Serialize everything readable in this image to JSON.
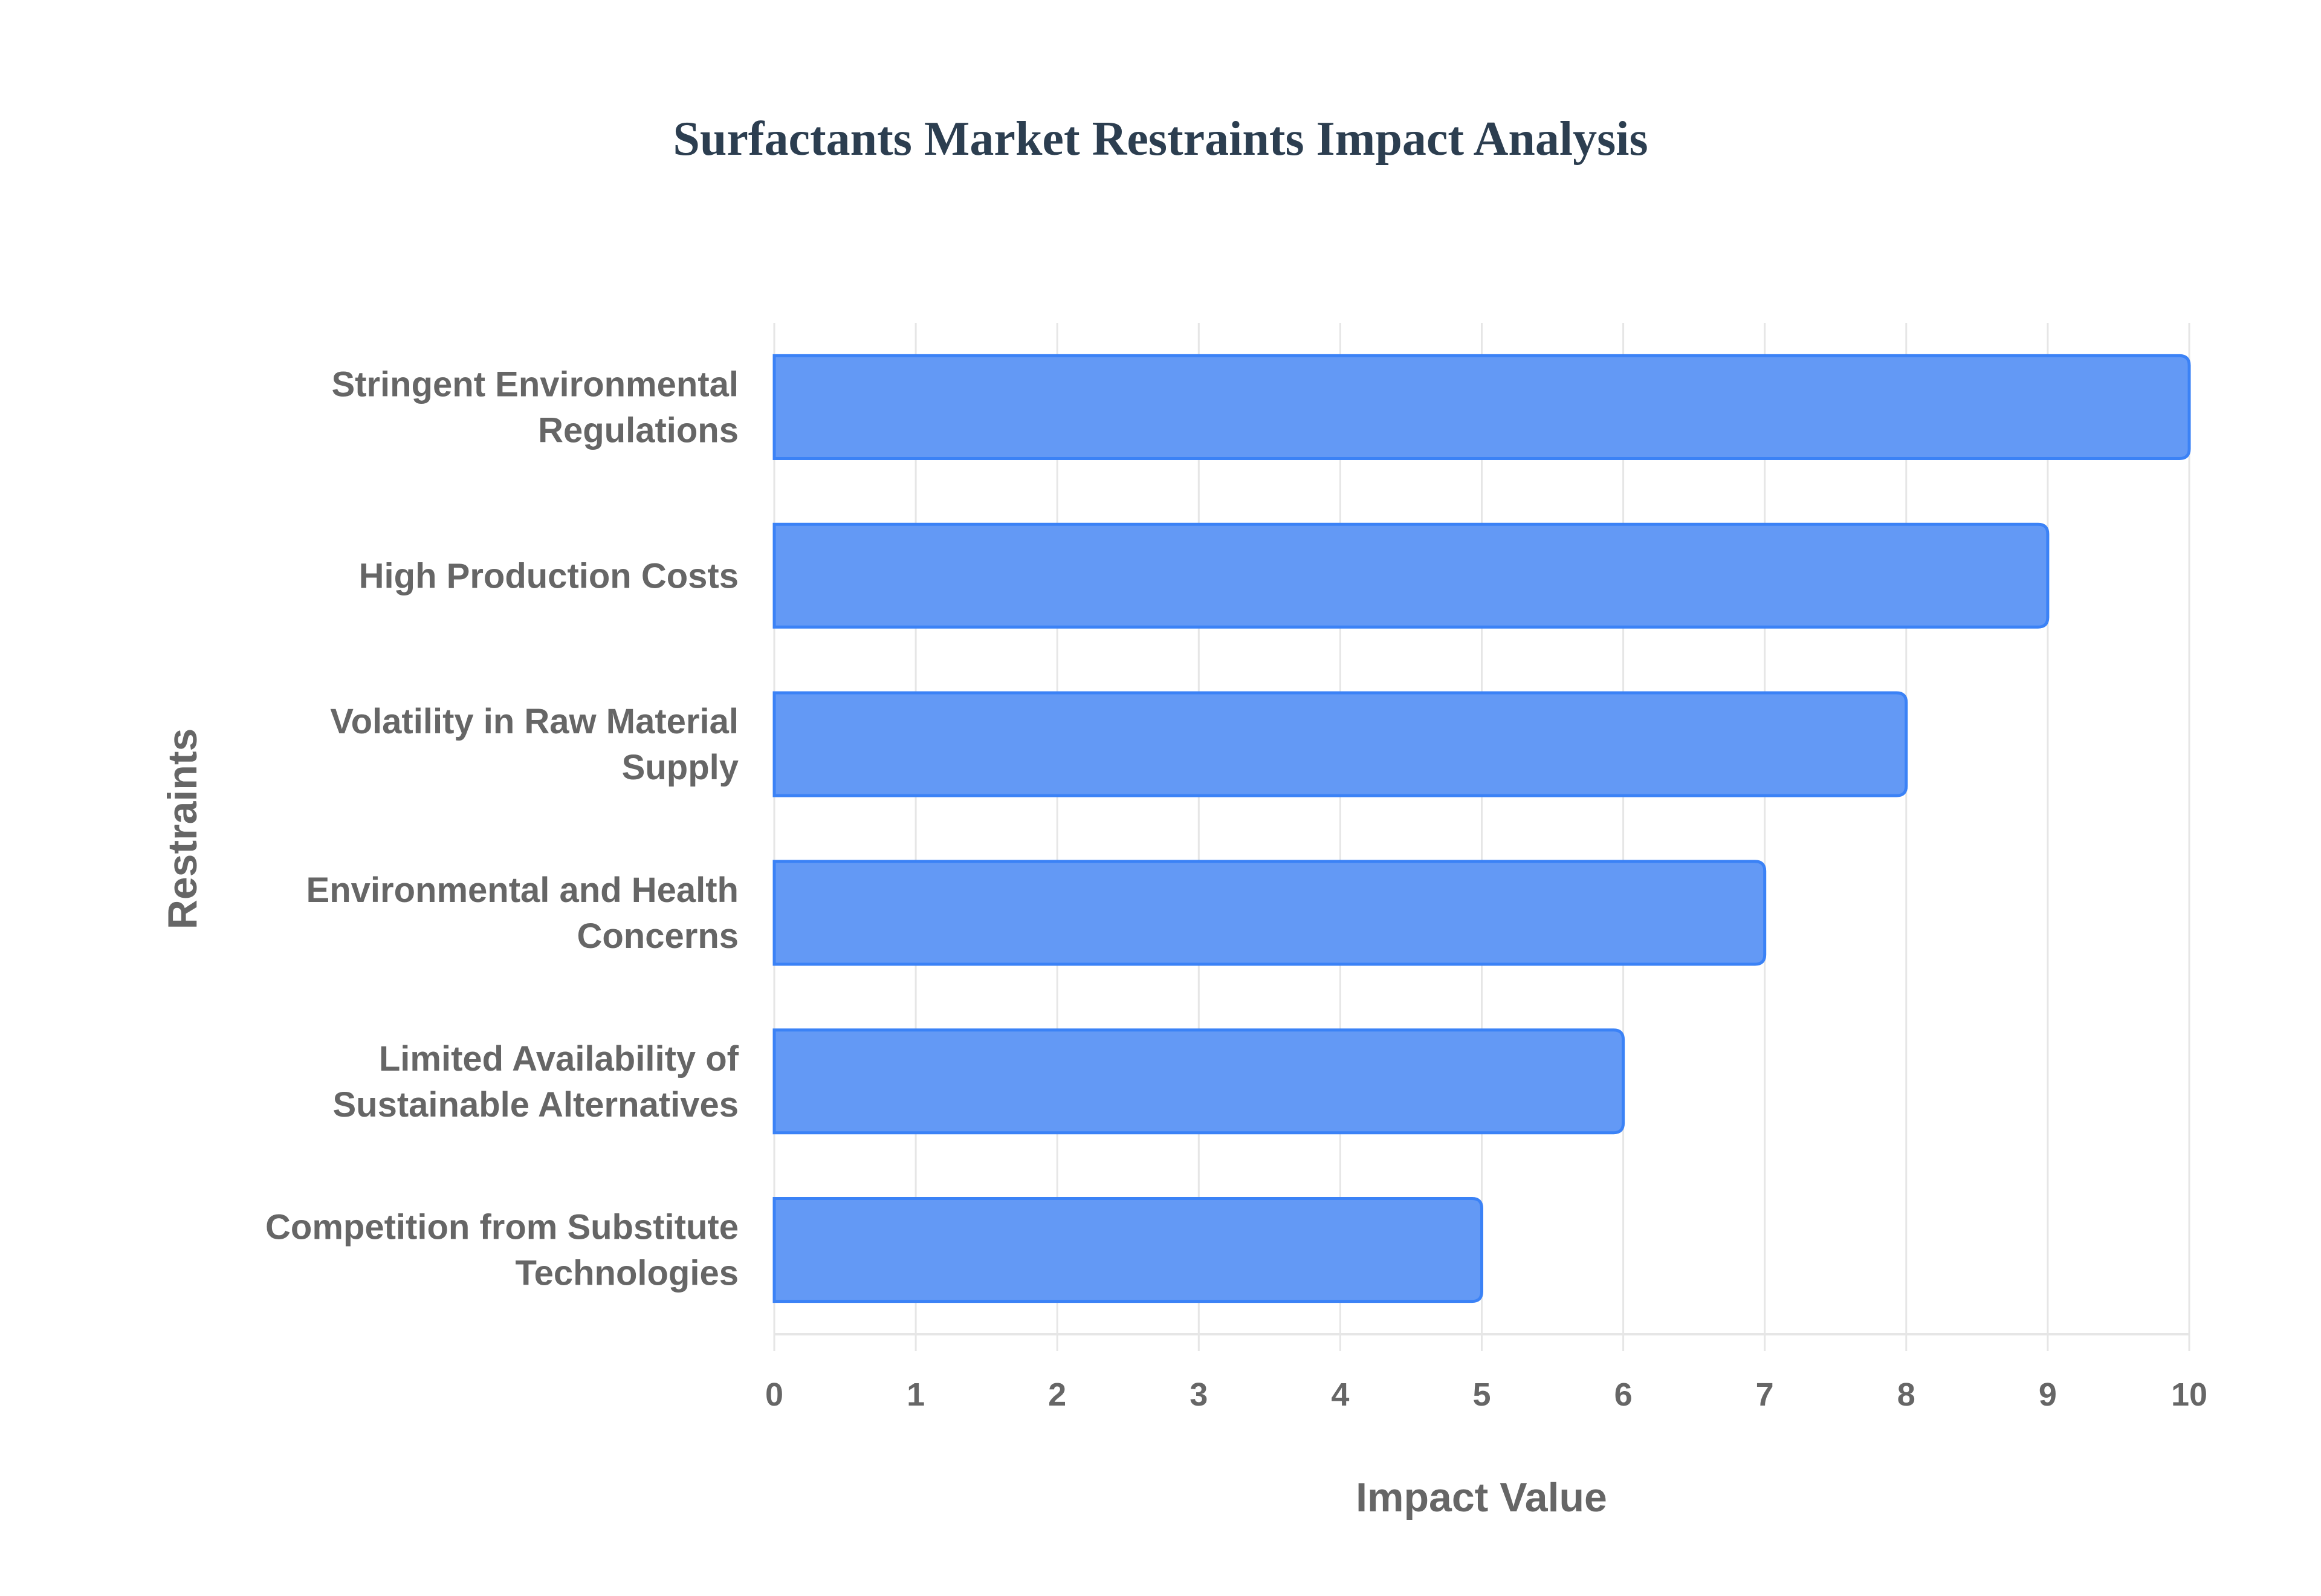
{
  "chart_data": {
    "type": "bar",
    "orientation": "horizontal",
    "title": "Surfactants Market Restraints Impact Analysis",
    "xlabel": "Impact Value",
    "ylabel": "Restraints",
    "categories": [
      [
        "Stringent Environmental",
        "Regulations"
      ],
      [
        "High Production Costs"
      ],
      [
        "Volatility in Raw Material",
        "Supply"
      ],
      [
        "Environmental and Health",
        "Concerns"
      ],
      [
        "Limited Availability of",
        "Sustainable Alternatives"
      ],
      [
        "Competition from Substitute",
        "Technologies"
      ]
    ],
    "values": [
      10,
      9,
      8,
      7,
      6,
      5
    ],
    "xlim": [
      0,
      10
    ],
    "xticks": [
      "0",
      "1",
      "2",
      "3",
      "4",
      "5",
      "6",
      "7",
      "8",
      "9",
      "10"
    ],
    "grid": true,
    "colors": {
      "bar_fill": "#6399f5",
      "bar_border": "#3b82f6",
      "grid": "#e6e6e6"
    }
  }
}
